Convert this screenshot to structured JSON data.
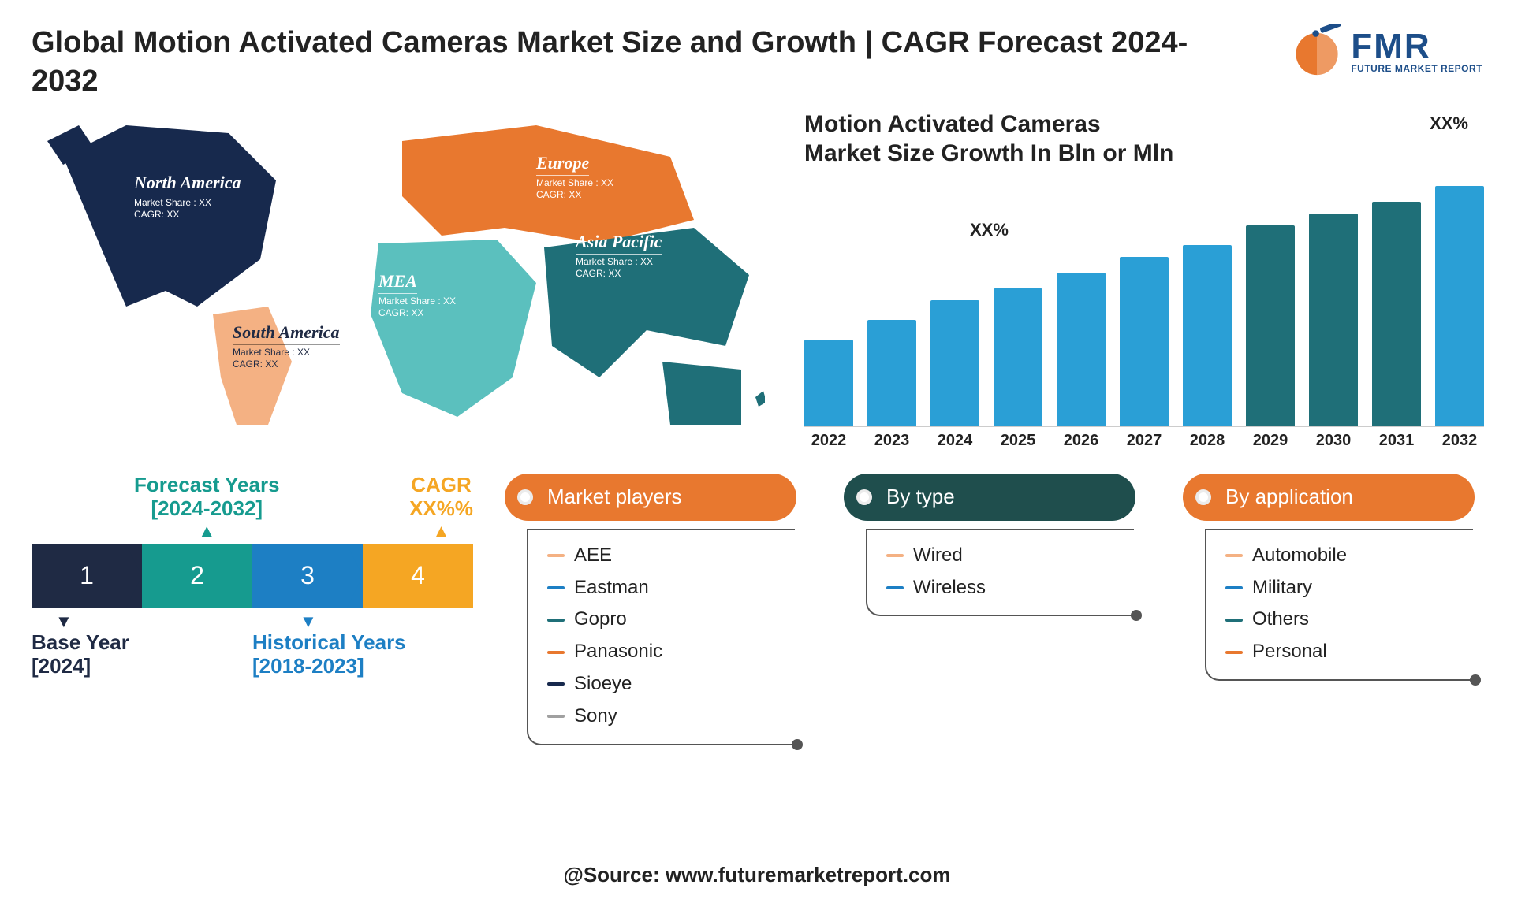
{
  "title": "Global Motion Activated Cameras Market Size and Growth | CAGR Forecast 2024-2032",
  "logo": {
    "fmr": "FMR",
    "sub": "FUTURE MARKET REPORT"
  },
  "map": {
    "regions": [
      {
        "key": "na",
        "name": "North America",
        "share": "Market Share : XX",
        "cagr": "CAGR: XX",
        "color": "#17294d"
      },
      {
        "key": "sa",
        "name": "South America",
        "share": "Market Share : XX",
        "cagr": "CAGR: XX",
        "color": "#f4b183"
      },
      {
        "key": "eu",
        "name": "Europe",
        "share": "Market Share : XX",
        "cagr": "CAGR: XX",
        "color": "#e8782f"
      },
      {
        "key": "mea",
        "name": "MEA",
        "share": "Market Share : XX",
        "cagr": "CAGR: XX",
        "color": "#5bc0be"
      },
      {
        "key": "ap",
        "name": "Asia Pacific",
        "share": "Market Share : XX",
        "cagr": "CAGR: XX",
        "color": "#1f6f78"
      }
    ]
  },
  "chart": {
    "title": "Motion Activated Cameras Market Size Growth In Bln or Mln",
    "note_top": "XX%",
    "note_mid": "XX%",
    "bar_color_light": "#2a9fd6",
    "bar_color_dark": "#1f6f78",
    "categories": [
      "2022",
      "2023",
      "2024",
      "2025",
      "2026",
      "2027",
      "2028",
      "2029",
      "2030",
      "2031",
      "2032"
    ],
    "values": [
      110,
      135,
      160,
      175,
      195,
      215,
      230,
      255,
      270,
      285,
      305
    ],
    "dark_indices": [
      7,
      8,
      9
    ]
  },
  "timeline": {
    "forecast_label": "Forecast Years",
    "forecast_range": "[2024-2032]",
    "cagr_label": "CAGR",
    "cagr_value": "XX%%",
    "base_label": "Base Year",
    "base_range": "[2024]",
    "hist_label": "Historical Years",
    "hist_range": "[2018-2023]",
    "segments": [
      "1",
      "2",
      "3",
      "4"
    ]
  },
  "pills": [
    {
      "title": "Market players",
      "bg": "#e8782f",
      "items": [
        {
          "label": "AEE",
          "tick": "#f4b183"
        },
        {
          "label": "Eastman",
          "tick": "#1d7fc4"
        },
        {
          "label": "Gopro",
          "tick": "#1f6f78"
        },
        {
          "label": "Panasonic",
          "tick": "#e8782f"
        },
        {
          "label": "Sioeye",
          "tick": "#17294d"
        },
        {
          "label": "Sony",
          "tick": "#a0a0a0"
        }
      ]
    },
    {
      "title": "By type",
      "bg": "#1f4e4d",
      "items": [
        {
          "label": "Wired",
          "tick": "#f4b183"
        },
        {
          "label": "Wireless",
          "tick": "#1d7fc4"
        }
      ]
    },
    {
      "title": "By application",
      "bg": "#e8782f",
      "items": [
        {
          "label": "Automobile",
          "tick": "#f4b183"
        },
        {
          "label": "Military",
          "tick": "#1d7fc4"
        },
        {
          "label": "Others",
          "tick": "#1f6f78"
        },
        {
          "label": "Personal",
          "tick": "#e8782f"
        }
      ]
    }
  ],
  "source": "@Source: www.futuremarketreport.com"
}
